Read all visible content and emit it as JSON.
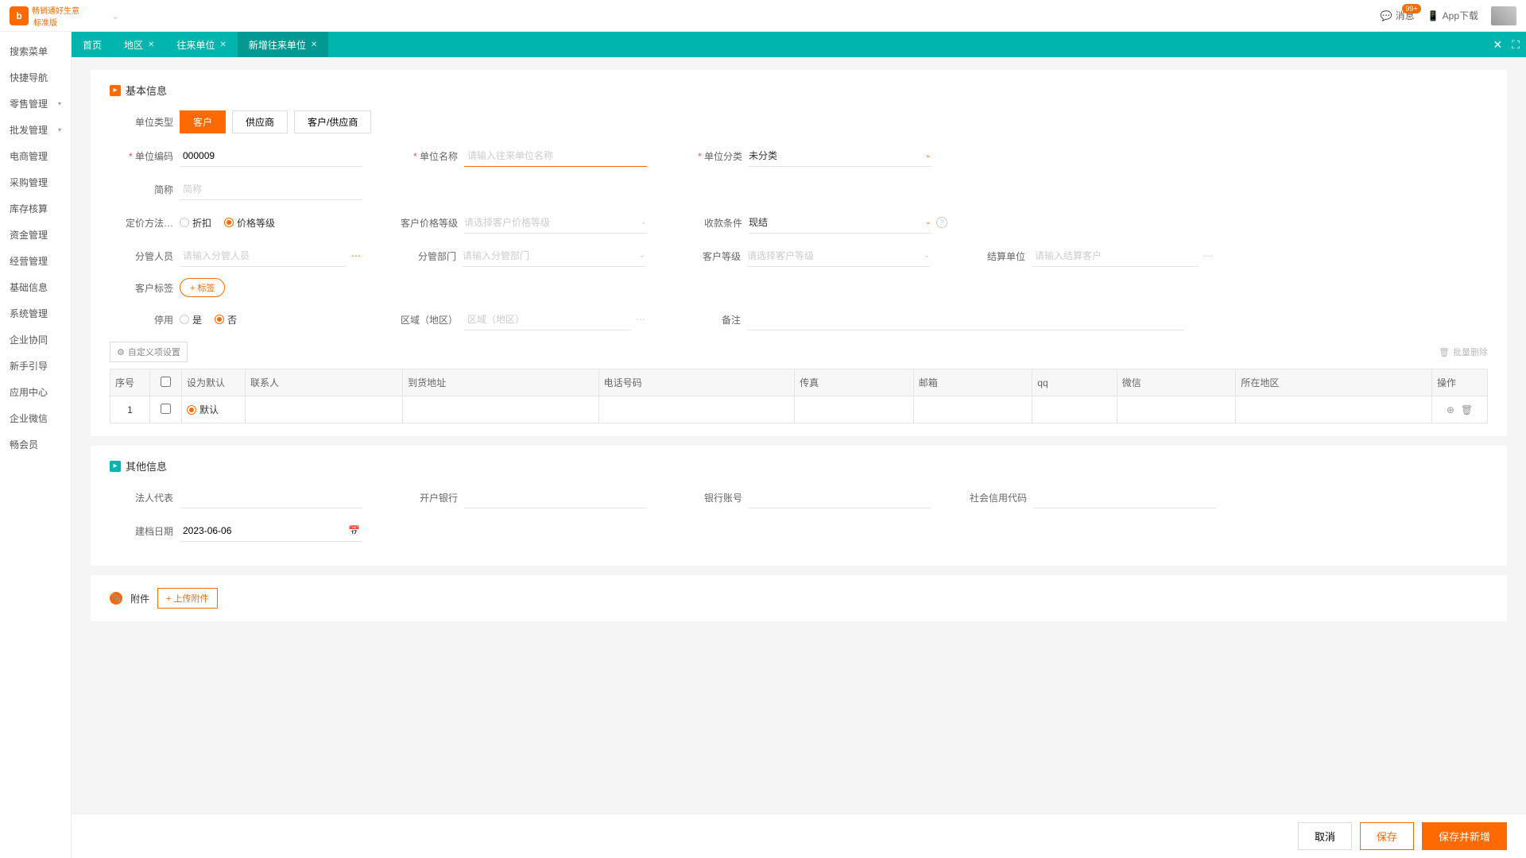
{
  "top": {
    "logo_letter": "b",
    "logo_text": "畅销通好生意",
    "logo_sub": "标准版",
    "messages_label": "消息",
    "messages_badge": "99+",
    "download_label": "App下载"
  },
  "tabs": [
    {
      "label": "首页",
      "closable": false,
      "active": false
    },
    {
      "label": "地区",
      "closable": true,
      "active": false
    },
    {
      "label": "往来单位",
      "closable": true,
      "active": false
    },
    {
      "label": "新增往来单位",
      "closable": true,
      "active": true
    }
  ],
  "sidebar": [
    {
      "label": "搜索菜单",
      "caret": false
    },
    {
      "label": "快捷导航",
      "caret": false
    },
    {
      "label": "零售管理",
      "caret": true
    },
    {
      "label": "批发管理",
      "caret": true
    },
    {
      "label": "电商管理",
      "caret": false
    },
    {
      "label": "采购管理",
      "caret": false
    },
    {
      "label": "库存核算",
      "caret": false
    },
    {
      "label": "资金管理",
      "caret": false
    },
    {
      "label": "经营管理",
      "caret": false
    },
    {
      "label": "基础信息",
      "caret": false
    },
    {
      "label": "系统管理",
      "caret": false
    },
    {
      "label": "企业协同",
      "caret": false
    },
    {
      "label": "新手引导",
      "caret": false
    },
    {
      "label": "应用中心",
      "caret": false
    },
    {
      "label": "企业微信",
      "caret": false
    },
    {
      "label": "畅会员",
      "caret": false
    }
  ],
  "sections": {
    "basic": "基本信息",
    "other": "其他信息",
    "attach": "附件"
  },
  "labels": {
    "unit_type": "单位类型",
    "unit_code": "单位编码",
    "unit_name": "单位名称",
    "unit_category": "单位分类",
    "abbr": "简称",
    "pricing_method": "定价方法…",
    "customer_price_level": "客户价格等级",
    "payment_terms": "收款条件",
    "responsible_person": "分管人员",
    "responsible_dept": "分管部门",
    "customer_level": "客户等级",
    "settlement_unit": "结算单位",
    "customer_tag": "客户标签",
    "disabled": "停用",
    "region": "区域（地区）",
    "remarks": "备注",
    "legal_rep": "法人代表",
    "bank": "开户银行",
    "bank_account": "银行账号",
    "social_credit": "社会信用代码",
    "create_date": "建档日期"
  },
  "values": {
    "unit_code": "000009",
    "unit_category": "未分类",
    "payment_terms": "现结",
    "create_date": "2023-06-06"
  },
  "placeholders": {
    "unit_name": "请输入往来单位名称",
    "abbr": "简称",
    "customer_price_level": "请选择客户价格等级",
    "responsible_person": "请输入分管人员",
    "responsible_dept": "请输入分管部门",
    "customer_level": "请选择客户等级",
    "settlement_unit": "请输入结算客户",
    "region": "区域（地区）"
  },
  "unit_type_options": [
    "客户",
    "供应商",
    "客户/供应商"
  ],
  "pricing_options": [
    "折扣",
    "价格等级"
  ],
  "disabled_options": [
    "是",
    "否"
  ],
  "tag_btn": "+ 标签",
  "custom_settings": "自定义项设置",
  "batch_delete": "批量删除",
  "table": {
    "headers": [
      "序号",
      "",
      "设为默认",
      "联系人",
      "到货地址",
      "电话号码",
      "传真",
      "邮箱",
      "qq",
      "微信",
      "所在地区",
      "操作"
    ],
    "default_label": "默认",
    "row_num": "1"
  },
  "upload_btn": "+ 上传附件",
  "footer": {
    "cancel": "取消",
    "save": "保存",
    "save_new": "保存并新增"
  }
}
